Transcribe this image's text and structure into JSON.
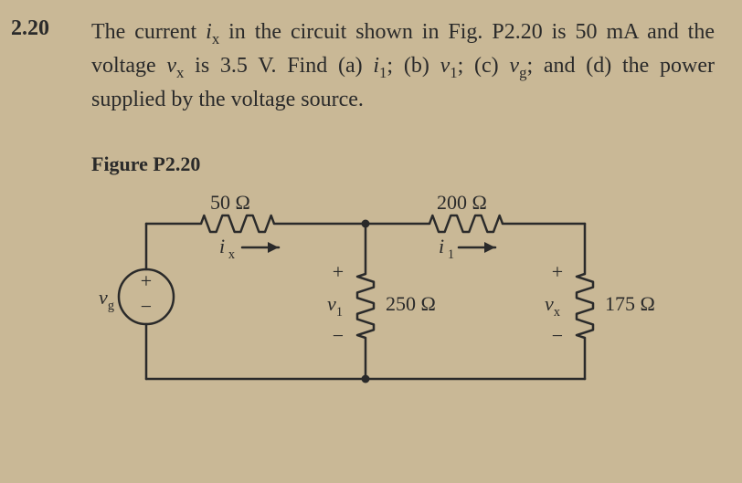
{
  "problem": {
    "number": "2.20",
    "text_parts": {
      "line": "The current <i>i</i><sub>x</sub> in the circuit shown in Fig. P2.20 is 50 mA and the voltage <i>v</i><sub>x</sub> is 3.5 V. Find (a) <i>i</i><sub>1</sub>; (b) <i>v</i><sub>1</sub>; (c) <i>v</i><sub>g</sub>; and (d) the power supplied by the voltage source."
    }
  },
  "figure": {
    "caption": "Figure P2.20",
    "circuit": {
      "type": "schematic",
      "background_color": "#c9b896",
      "stroke_color": "#2a2a2a",
      "line_width": 2.5,
      "font_size_label": 22,
      "font_size_sign": 22,
      "source": {
        "label": "v",
        "sub": "g",
        "polarity_top": "+",
        "polarity_bottom": "−"
      },
      "resistors": {
        "r50": {
          "value": "50 Ω",
          "orientation": "horizontal"
        },
        "r200": {
          "value": "200 Ω",
          "orientation": "horizontal"
        },
        "r250": {
          "value": "250 Ω",
          "orientation": "vertical",
          "v_label": "v",
          "v_sub": "1"
        },
        "r175": {
          "value": "175 Ω",
          "orientation": "vertical",
          "v_label": "v",
          "v_sub": "x"
        }
      },
      "currents": {
        "ix": {
          "label": "i",
          "sub": "x",
          "direction": "right"
        },
        "i1": {
          "label": "i",
          "sub": "1",
          "direction": "right"
        }
      },
      "nodes": {
        "top_center": true,
        "bottom_center": true
      }
    }
  }
}
